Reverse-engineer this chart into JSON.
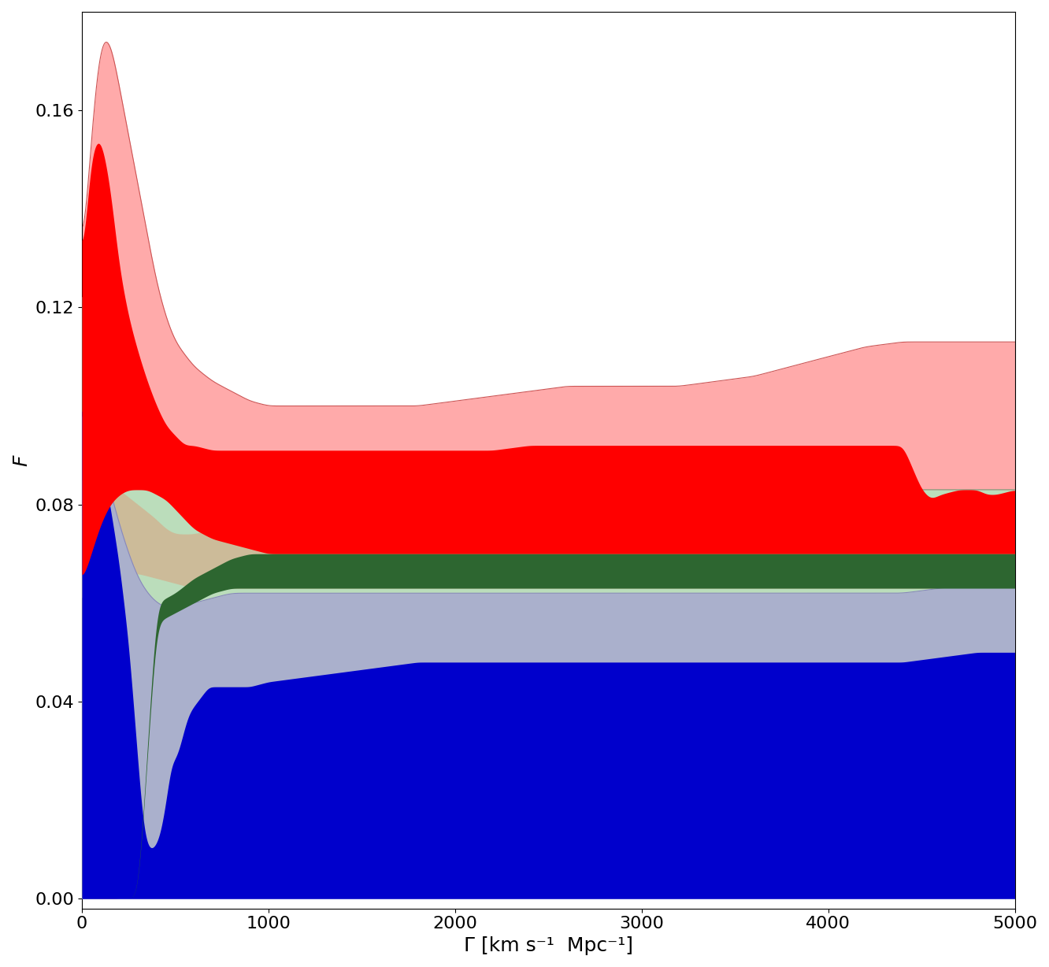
{
  "xlabel": "Γ [km s⁻¹  Mpc⁻¹]",
  "ylabel": "F",
  "xlim": [
    0,
    5000
  ],
  "ylim": [
    -0.002,
    0.18
  ],
  "yticks": [
    0.0,
    0.04,
    0.08,
    0.12,
    0.16
  ],
  "xticks": [
    0,
    1000,
    2000,
    3000,
    4000,
    5000
  ],
  "figsize": [
    13.32,
    12.28
  ],
  "dpi": 100,
  "pink_upper": [
    [
      0,
      0.125
    ],
    [
      50,
      0.155
    ],
    [
      100,
      0.175
    ],
    [
      150,
      0.175
    ],
    [
      200,
      0.165
    ],
    [
      300,
      0.145
    ],
    [
      350,
      0.135
    ],
    [
      400,
      0.125
    ],
    [
      450,
      0.118
    ],
    [
      500,
      0.113
    ],
    [
      600,
      0.108
    ],
    [
      700,
      0.105
    ],
    [
      800,
      0.103
    ],
    [
      900,
      0.101
    ],
    [
      1000,
      0.1
    ],
    [
      1200,
      0.1
    ],
    [
      1400,
      0.1
    ],
    [
      1600,
      0.1
    ],
    [
      1800,
      0.1
    ],
    [
      2000,
      0.101
    ],
    [
      2200,
      0.102
    ],
    [
      2400,
      0.103
    ],
    [
      2600,
      0.104
    ],
    [
      2800,
      0.104
    ],
    [
      3000,
      0.104
    ],
    [
      3200,
      0.104
    ],
    [
      3400,
      0.105
    ],
    [
      3600,
      0.106
    ],
    [
      3800,
      0.108
    ],
    [
      4000,
      0.11
    ],
    [
      4200,
      0.112
    ],
    [
      4400,
      0.113
    ],
    [
      4600,
      0.113
    ],
    [
      4800,
      0.113
    ],
    [
      5000,
      0.113
    ]
  ],
  "pink_lower": [
    [
      0,
      0.0
    ],
    [
      50,
      0.0
    ],
    [
      100,
      0.0
    ],
    [
      200,
      0.0
    ],
    [
      300,
      0.001
    ],
    [
      400,
      0.003
    ],
    [
      500,
      0.005
    ],
    [
      600,
      0.006
    ],
    [
      700,
      0.007
    ],
    [
      800,
      0.007
    ],
    [
      900,
      0.007
    ],
    [
      1000,
      0.007
    ],
    [
      2000,
      0.007
    ],
    [
      3000,
      0.007
    ],
    [
      4000,
      0.007
    ],
    [
      5000,
      0.007
    ]
  ],
  "pink_color": "#ffaaaa",
  "pink_edge_color": "#cc5555",
  "red_upper": [
    [
      0,
      0.126
    ],
    [
      50,
      0.152
    ],
    [
      100,
      0.155
    ],
    [
      150,
      0.145
    ],
    [
      200,
      0.128
    ],
    [
      250,
      0.118
    ],
    [
      300,
      0.111
    ],
    [
      350,
      0.105
    ],
    [
      400,
      0.1
    ],
    [
      450,
      0.096
    ],
    [
      500,
      0.094
    ],
    [
      550,
      0.092
    ],
    [
      600,
      0.092
    ],
    [
      700,
      0.091
    ],
    [
      800,
      0.091
    ],
    [
      900,
      0.091
    ],
    [
      1000,
      0.091
    ],
    [
      1200,
      0.091
    ],
    [
      1400,
      0.091
    ],
    [
      1600,
      0.091
    ],
    [
      1800,
      0.091
    ],
    [
      2000,
      0.091
    ],
    [
      2200,
      0.091
    ],
    [
      2400,
      0.092
    ],
    [
      2600,
      0.092
    ],
    [
      2800,
      0.092
    ],
    [
      3000,
      0.092
    ],
    [
      3200,
      0.092
    ],
    [
      3400,
      0.092
    ],
    [
      3600,
      0.092
    ],
    [
      3800,
      0.092
    ],
    [
      4000,
      0.092
    ],
    [
      4200,
      0.092
    ],
    [
      4400,
      0.092
    ],
    [
      4500,
      0.083
    ],
    [
      4550,
      0.081
    ],
    [
      4600,
      0.082
    ],
    [
      4700,
      0.083
    ],
    [
      4800,
      0.083
    ],
    [
      4850,
      0.082
    ],
    [
      4900,
      0.082
    ],
    [
      5000,
      0.083
    ]
  ],
  "red_lower": [
    [
      0,
      0.064
    ],
    [
      50,
      0.07
    ],
    [
      100,
      0.076
    ],
    [
      150,
      0.08
    ],
    [
      200,
      0.082
    ],
    [
      250,
      0.083
    ],
    [
      300,
      0.083
    ],
    [
      350,
      0.083
    ],
    [
      400,
      0.082
    ],
    [
      450,
      0.081
    ],
    [
      500,
      0.079
    ],
    [
      550,
      0.077
    ],
    [
      600,
      0.075
    ],
    [
      700,
      0.073
    ],
    [
      800,
      0.072
    ],
    [
      900,
      0.071
    ],
    [
      1000,
      0.07
    ],
    [
      1200,
      0.07
    ],
    [
      1400,
      0.07
    ],
    [
      1600,
      0.07
    ],
    [
      1800,
      0.07
    ],
    [
      2000,
      0.07
    ],
    [
      2200,
      0.07
    ],
    [
      2400,
      0.07
    ],
    [
      2600,
      0.07
    ],
    [
      2800,
      0.07
    ],
    [
      3000,
      0.07
    ],
    [
      3200,
      0.07
    ],
    [
      3400,
      0.07
    ],
    [
      3600,
      0.07
    ],
    [
      3800,
      0.07
    ],
    [
      4000,
      0.07
    ],
    [
      4200,
      0.07
    ],
    [
      4400,
      0.07
    ],
    [
      4500,
      0.07
    ],
    [
      4600,
      0.07
    ],
    [
      4700,
      0.07
    ],
    [
      4800,
      0.07
    ],
    [
      4900,
      0.07
    ],
    [
      5000,
      0.07
    ]
  ],
  "red_color": "#ff0000",
  "lgreen_upper": [
    [
      0,
      0.122
    ],
    [
      50,
      0.122
    ],
    [
      100,
      0.12
    ],
    [
      150,
      0.116
    ],
    [
      200,
      0.11
    ],
    [
      250,
      0.104
    ],
    [
      300,
      0.098
    ],
    [
      350,
      0.093
    ],
    [
      400,
      0.089
    ],
    [
      450,
      0.086
    ],
    [
      500,
      0.085
    ],
    [
      600,
      0.084
    ],
    [
      700,
      0.083
    ],
    [
      800,
      0.083
    ],
    [
      900,
      0.083
    ],
    [
      1000,
      0.083
    ],
    [
      1200,
      0.083
    ],
    [
      1400,
      0.083
    ],
    [
      1600,
      0.083
    ],
    [
      1800,
      0.083
    ],
    [
      2000,
      0.083
    ],
    [
      2200,
      0.083
    ],
    [
      2400,
      0.083
    ],
    [
      2600,
      0.083
    ],
    [
      2800,
      0.083
    ],
    [
      3000,
      0.083
    ],
    [
      3200,
      0.083
    ],
    [
      3400,
      0.083
    ],
    [
      3600,
      0.083
    ],
    [
      3800,
      0.083
    ],
    [
      4000,
      0.083
    ],
    [
      4200,
      0.083
    ],
    [
      4400,
      0.083
    ],
    [
      4600,
      0.083
    ],
    [
      4800,
      0.083
    ],
    [
      5000,
      0.083
    ]
  ],
  "lgreen_lower": [
    [
      0,
      0.0
    ],
    [
      50,
      0.0
    ],
    [
      100,
      0.0
    ],
    [
      200,
      0.001
    ],
    [
      300,
      0.003
    ],
    [
      400,
      0.005
    ],
    [
      500,
      0.007
    ],
    [
      600,
      0.008
    ],
    [
      700,
      0.009
    ],
    [
      800,
      0.009
    ],
    [
      900,
      0.009
    ],
    [
      1000,
      0.009
    ],
    [
      2000,
      0.009
    ],
    [
      3000,
      0.009
    ],
    [
      4000,
      0.009
    ],
    [
      5000,
      0.009
    ]
  ],
  "lgreen_color": "#bbddbb",
  "lgreen_edge_color": "#779977",
  "tan_upper": [
    [
      0,
      0.085
    ],
    [
      100,
      0.085
    ],
    [
      200,
      0.083
    ],
    [
      300,
      0.08
    ],
    [
      400,
      0.077
    ],
    [
      450,
      0.075
    ],
    [
      500,
      0.074
    ],
    [
      600,
      0.074
    ],
    [
      700,
      0.075
    ],
    [
      800,
      0.076
    ],
    [
      900,
      0.077
    ],
    [
      1000,
      0.077
    ],
    [
      1200,
      0.077
    ],
    [
      1400,
      0.077
    ],
    [
      1600,
      0.077
    ],
    [
      1800,
      0.077
    ],
    [
      2000,
      0.078
    ],
    [
      2200,
      0.079
    ],
    [
      2400,
      0.08
    ],
    [
      2600,
      0.08
    ],
    [
      2800,
      0.08
    ],
    [
      3000,
      0.08
    ],
    [
      3200,
      0.08
    ],
    [
      3400,
      0.08
    ],
    [
      3600,
      0.08
    ],
    [
      3800,
      0.08
    ],
    [
      4000,
      0.079
    ],
    [
      4200,
      0.079
    ],
    [
      4400,
      0.079
    ],
    [
      4600,
      0.079
    ],
    [
      4800,
      0.079
    ],
    [
      5000,
      0.078
    ]
  ],
  "tan_lower": [
    [
      0,
      0.06
    ],
    [
      50,
      0.063
    ],
    [
      100,
      0.065
    ],
    [
      200,
      0.066
    ],
    [
      300,
      0.066
    ],
    [
      400,
      0.065
    ],
    [
      500,
      0.064
    ],
    [
      600,
      0.063
    ],
    [
      700,
      0.063
    ],
    [
      800,
      0.063
    ],
    [
      900,
      0.063
    ],
    [
      1000,
      0.063
    ],
    [
      2000,
      0.063
    ],
    [
      3000,
      0.063
    ],
    [
      4000,
      0.063
    ],
    [
      5000,
      0.063
    ]
  ],
  "tan_color": "#ccbb99",
  "dgreen_upper": [
    [
      0,
      0.0
    ],
    [
      100,
      0.0
    ],
    [
      200,
      0.0
    ],
    [
      300,
      0.0
    ],
    [
      400,
      0.06
    ],
    [
      500,
      0.062
    ],
    [
      600,
      0.065
    ],
    [
      700,
      0.067
    ],
    [
      800,
      0.069
    ],
    [
      900,
      0.07
    ],
    [
      1000,
      0.07
    ],
    [
      1200,
      0.07
    ],
    [
      1400,
      0.07
    ],
    [
      1600,
      0.07
    ],
    [
      1800,
      0.07
    ],
    [
      2000,
      0.07
    ],
    [
      2200,
      0.07
    ],
    [
      2400,
      0.07
    ],
    [
      2600,
      0.07
    ],
    [
      2800,
      0.07
    ],
    [
      3000,
      0.07
    ],
    [
      3200,
      0.07
    ],
    [
      3400,
      0.07
    ],
    [
      3600,
      0.07
    ],
    [
      3800,
      0.07
    ],
    [
      4000,
      0.07
    ],
    [
      4200,
      0.07
    ],
    [
      4400,
      0.07
    ],
    [
      4600,
      0.07
    ],
    [
      4800,
      0.07
    ],
    [
      5000,
      0.07
    ]
  ],
  "dgreen_lower": [
    [
      0,
      0.0
    ],
    [
      100,
      0.0
    ],
    [
      200,
      0.0
    ],
    [
      300,
      0.0
    ],
    [
      400,
      0.056
    ],
    [
      500,
      0.058
    ],
    [
      600,
      0.06
    ],
    [
      700,
      0.062
    ],
    [
      800,
      0.063
    ],
    [
      900,
      0.063
    ],
    [
      1000,
      0.063
    ],
    [
      2000,
      0.063
    ],
    [
      3000,
      0.063
    ],
    [
      4000,
      0.063
    ],
    [
      5000,
      0.063
    ]
  ],
  "dgreen_color": "#2d6630",
  "lblue_upper": [
    [
      0,
      0.1
    ],
    [
      50,
      0.095
    ],
    [
      100,
      0.09
    ],
    [
      150,
      0.083
    ],
    [
      200,
      0.076
    ],
    [
      250,
      0.07
    ],
    [
      300,
      0.065
    ],
    [
      350,
      0.062
    ],
    [
      400,
      0.06
    ],
    [
      450,
      0.059
    ],
    [
      500,
      0.059
    ],
    [
      600,
      0.06
    ],
    [
      700,
      0.061
    ],
    [
      800,
      0.062
    ],
    [
      900,
      0.062
    ],
    [
      1000,
      0.062
    ],
    [
      1200,
      0.062
    ],
    [
      1400,
      0.062
    ],
    [
      1600,
      0.062
    ],
    [
      1800,
      0.062
    ],
    [
      2000,
      0.062
    ],
    [
      2200,
      0.062
    ],
    [
      2400,
      0.062
    ],
    [
      2600,
      0.062
    ],
    [
      2800,
      0.062
    ],
    [
      3000,
      0.062
    ],
    [
      3200,
      0.062
    ],
    [
      3400,
      0.062
    ],
    [
      3600,
      0.062
    ],
    [
      3800,
      0.062
    ],
    [
      4000,
      0.062
    ],
    [
      4200,
      0.062
    ],
    [
      4400,
      0.062
    ],
    [
      4600,
      0.063
    ],
    [
      4800,
      0.064
    ],
    [
      5000,
      0.065
    ]
  ],
  "lblue_lower": [
    [
      0,
      0.0
    ],
    [
      50,
      0.0
    ],
    [
      100,
      0.0
    ],
    [
      200,
      0.0
    ],
    [
      300,
      0.0
    ],
    [
      400,
      0.0
    ],
    [
      500,
      0.0
    ],
    [
      600,
      0.0
    ],
    [
      700,
      0.0
    ],
    [
      800,
      0.0
    ],
    [
      900,
      0.0
    ],
    [
      1000,
      0.0
    ],
    [
      2000,
      0.0
    ],
    [
      3000,
      0.0
    ],
    [
      4000,
      0.0
    ],
    [
      5000,
      0.0
    ]
  ],
  "lblue_color": "#aab0cc",
  "lblue_edge_color": "#8888bb",
  "blue_upper": [
    [
      0,
      0.1
    ],
    [
      50,
      0.095
    ],
    [
      100,
      0.09
    ],
    [
      150,
      0.08
    ],
    [
      200,
      0.068
    ],
    [
      250,
      0.052
    ],
    [
      300,
      0.028
    ],
    [
      320,
      0.018
    ],
    [
      340,
      0.012
    ],
    [
      360,
      0.01
    ],
    [
      380,
      0.01
    ],
    [
      400,
      0.011
    ],
    [
      420,
      0.013
    ],
    [
      440,
      0.017
    ],
    [
      460,
      0.022
    ],
    [
      480,
      0.028
    ],
    [
      500,
      0.028
    ],
    [
      520,
      0.03
    ],
    [
      540,
      0.033
    ],
    [
      560,
      0.036
    ],
    [
      580,
      0.038
    ],
    [
      600,
      0.039
    ],
    [
      620,
      0.04
    ],
    [
      640,
      0.041
    ],
    [
      660,
      0.042
    ],
    [
      680,
      0.043
    ],
    [
      700,
      0.043
    ],
    [
      800,
      0.043
    ],
    [
      900,
      0.043
    ],
    [
      1000,
      0.044
    ],
    [
      1200,
      0.045
    ],
    [
      1400,
      0.046
    ],
    [
      1600,
      0.047
    ],
    [
      1800,
      0.048
    ],
    [
      2000,
      0.048
    ],
    [
      2200,
      0.048
    ],
    [
      2400,
      0.048
    ],
    [
      2600,
      0.048
    ],
    [
      2800,
      0.048
    ],
    [
      3000,
      0.048
    ],
    [
      3200,
      0.048
    ],
    [
      3400,
      0.048
    ],
    [
      3600,
      0.048
    ],
    [
      3800,
      0.048
    ],
    [
      4000,
      0.048
    ],
    [
      4200,
      0.048
    ],
    [
      4400,
      0.048
    ],
    [
      4600,
      0.049
    ],
    [
      4800,
      0.05
    ],
    [
      5000,
      0.05
    ]
  ],
  "blue_lower": [
    [
      0,
      0.0
    ],
    [
      50,
      0.0
    ],
    [
      100,
      0.0
    ],
    [
      200,
      0.0
    ],
    [
      300,
      0.0
    ],
    [
      400,
      0.0
    ],
    [
      500,
      0.0
    ],
    [
      600,
      0.0
    ],
    [
      700,
      0.0
    ],
    [
      800,
      0.0
    ],
    [
      900,
      0.0
    ],
    [
      1000,
      0.0
    ],
    [
      2000,
      0.0
    ],
    [
      3000,
      0.0
    ],
    [
      4000,
      0.0
    ],
    [
      5000,
      0.0
    ]
  ],
  "blue_color": "#0000cc",
  "red_end_upper": [
    [
      4440,
      0.082
    ],
    [
      4460,
      0.082
    ],
    [
      4480,
      0.082
    ],
    [
      4500,
      0.082
    ],
    [
      4520,
      0.082
    ],
    [
      4540,
      0.082
    ],
    [
      4560,
      0.083
    ],
    [
      4580,
      0.083
    ],
    [
      4600,
      0.083
    ],
    [
      4620,
      0.083
    ],
    [
      4700,
      0.083
    ],
    [
      4800,
      0.083
    ],
    [
      4900,
      0.083
    ],
    [
      5000,
      0.083
    ]
  ],
  "red_end_lower": [
    [
      4440,
      0.07
    ],
    [
      4460,
      0.071
    ],
    [
      4480,
      0.072
    ],
    [
      4500,
      0.073
    ],
    [
      4520,
      0.074
    ],
    [
      4540,
      0.075
    ],
    [
      4560,
      0.076
    ],
    [
      4580,
      0.077
    ],
    [
      4600,
      0.078
    ],
    [
      4620,
      0.079
    ],
    [
      4700,
      0.079
    ],
    [
      4800,
      0.079
    ],
    [
      4900,
      0.079
    ],
    [
      5000,
      0.079
    ]
  ]
}
